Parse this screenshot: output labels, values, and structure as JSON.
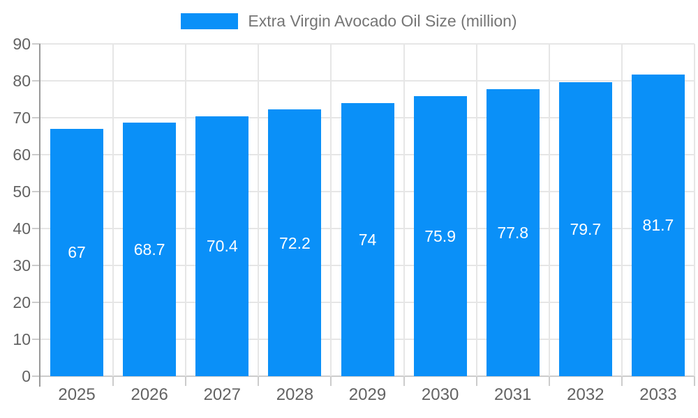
{
  "chart_data": {
    "type": "bar",
    "title": "",
    "legend": {
      "label": "Extra Virgin Avocado Oil Size (million)",
      "position": "top"
    },
    "categories": [
      "2025",
      "2026",
      "2027",
      "2028",
      "2029",
      "2030",
      "2031",
      "2032",
      "2033"
    ],
    "series": [
      {
        "name": "Extra Virgin Avocado Oil Size (million)",
        "values": [
          67,
          68.7,
          70.4,
          72.2,
          74,
          75.9,
          77.8,
          79.7,
          81.7
        ]
      }
    ],
    "xlabel": "",
    "ylabel": "",
    "ylim": [
      0,
      90
    ],
    "yticks": [
      0,
      10,
      20,
      30,
      40,
      50,
      60,
      70,
      80,
      90
    ],
    "grid": true,
    "colors": {
      "bar": "#0A90F8",
      "grid": "#E6E6E6",
      "baseline": "#CCCCCC",
      "tick": "#CCCCCC",
      "axis_line": "#999999",
      "axis_label": "#636363",
      "legend_text": "#757575",
      "value_label": "#FFFFFF",
      "background": "#FFFFFF"
    }
  }
}
